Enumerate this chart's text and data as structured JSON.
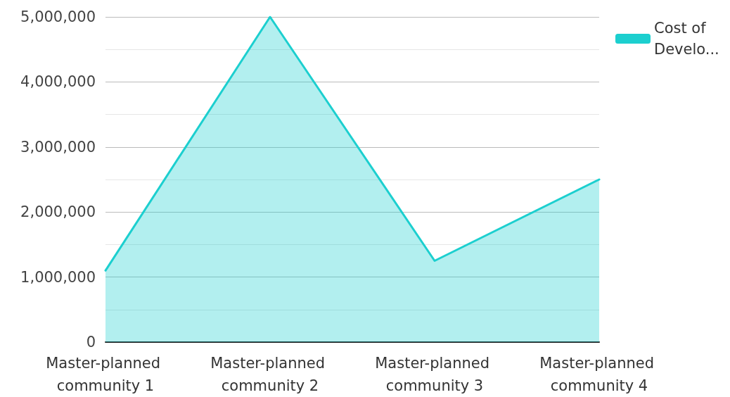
{
  "chart_data": {
    "type": "area",
    "categories": [
      "Master-planned community 1",
      "Master-planned community 2",
      "Master-planned community 3",
      "Master-planned community 4"
    ],
    "series": [
      {
        "name": "Cost of Develo...",
        "color": "#1ccfcf",
        "values": [
          1100000,
          5000000,
          1250000,
          2500000
        ]
      }
    ],
    "ylim": [
      0,
      5000000
    ],
    "yticks": [
      0,
      {
        "value": 1000000,
        "label": "1,000,000"
      },
      {
        "value": 2000000,
        "label": "2,000,000"
      },
      {
        "value": 3000000,
        "label": "3,000,000"
      },
      {
        "value": 4000000,
        "label": "4,000,000"
      },
      {
        "value": 5000000,
        "label": "5,000,000"
      }
    ],
    "grid": "y",
    "legend": "top right",
    "marker": "none",
    "line_style": "solid"
  }
}
